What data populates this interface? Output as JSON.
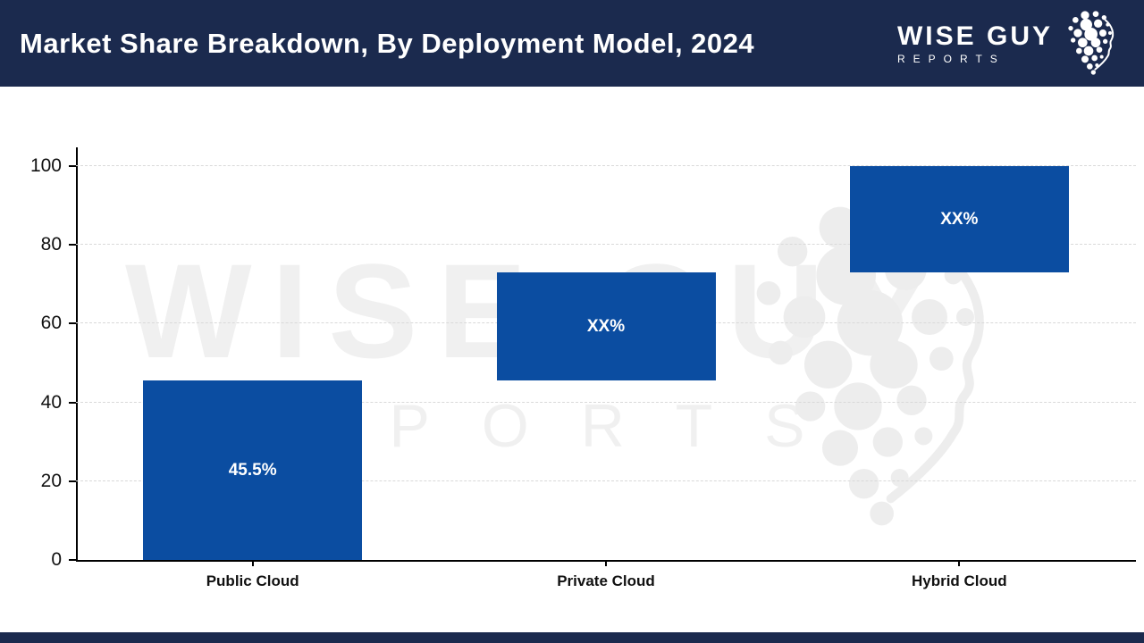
{
  "header": {
    "title": "Market Share Breakdown, By Deployment Model, 2024",
    "logo": {
      "line1": "WISE GUY",
      "line2": "REPORTS"
    }
  },
  "watermark": {
    "line1": "WISE GUY",
    "line2": "REPORTS"
  },
  "colors": {
    "header_bg": "#1b2a4e",
    "footer_bg": "#1b2a4e",
    "bar": "#0b4da1",
    "bar_label": "#ffffff",
    "grid": "#d9d9d9"
  },
  "chart_data": {
    "type": "bar",
    "subtype": "waterfall-stacked-segments",
    "title": "Market Share Breakdown, By Deployment Model, 2024",
    "categories": [
      "Public Cloud",
      "Private Cloud",
      "Hybrid Cloud"
    ],
    "segments": [
      {
        "category": "Public Cloud",
        "start": 0,
        "end": 45.5,
        "label": "45.5%"
      },
      {
        "category": "Private Cloud",
        "start": 45.5,
        "end": 73,
        "label": "XX%"
      },
      {
        "category": "Hybrid Cloud",
        "start": 73,
        "end": 100,
        "label": "XX%"
      }
    ],
    "xlabel": "",
    "ylabel": "",
    "ylim": [
      0,
      100
    ],
    "yticks": [
      0,
      20,
      40,
      60,
      80,
      100
    ],
    "grid": "horizontal-dashed",
    "legend": "none"
  }
}
